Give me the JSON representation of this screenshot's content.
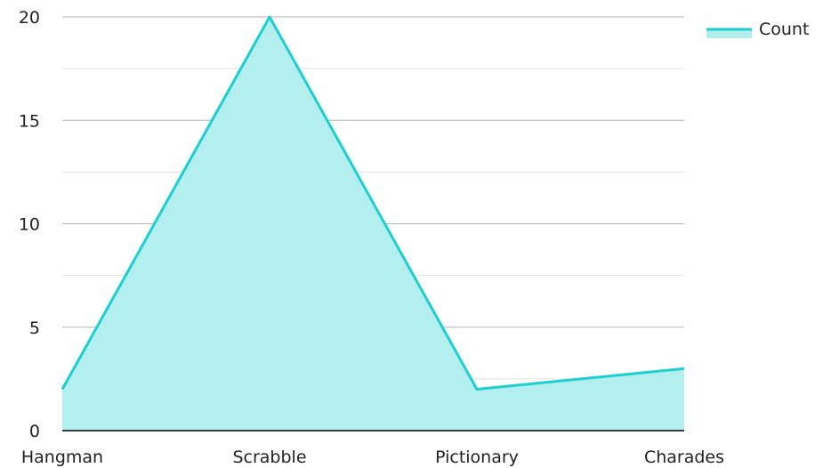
{
  "chart_data": {
    "type": "area",
    "categories": [
      "Hangman",
      "Scrabble",
      "Pictionary",
      "Charades"
    ],
    "series": [
      {
        "name": "Count",
        "values": [
          2,
          20,
          2,
          3
        ]
      }
    ],
    "title": "",
    "xlabel": "",
    "ylabel": "",
    "ylim": [
      0,
      20
    ],
    "yticks": [
      0,
      5,
      10,
      15,
      20
    ],
    "grid": true,
    "legend_position": "top-right",
    "colors": {
      "line": "#1ecfcf",
      "fill": "#b2efee",
      "grid_major": "#b4b4b4",
      "grid_minor": "#e2e2e2",
      "axis": "#000000"
    }
  }
}
